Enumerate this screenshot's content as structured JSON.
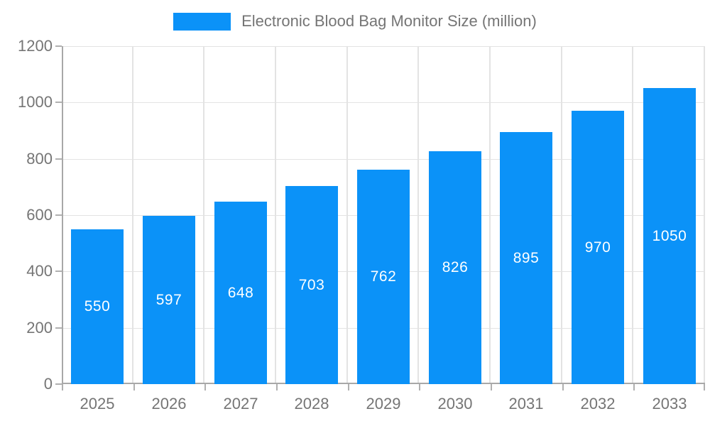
{
  "legend": {
    "label": "Electronic Blood Bag Monitor Size (million)"
  },
  "colors": {
    "bar": "#0b92f8",
    "bar_label": "#ffffff",
    "grid": "#e3e3e3",
    "axis": "#a8a8a8",
    "tick": "#b0b0b0",
    "text": "#757575",
    "background": "#ffffff"
  },
  "chart_data": {
    "type": "bar",
    "title": "Electronic Blood Bag Monitor Size (million)",
    "series_name": "Electronic Blood Bag Monitor Size (million)",
    "categories": [
      "2025",
      "2026",
      "2027",
      "2028",
      "2029",
      "2030",
      "2031",
      "2032",
      "2033"
    ],
    "values": [
      550,
      597,
      648,
      703,
      762,
      826,
      895,
      970,
      1050
    ],
    "xlabel": "",
    "ylabel": "",
    "ylim": [
      0,
      1200
    ],
    "yticks": [
      0,
      200,
      400,
      600,
      800,
      1000,
      1200
    ],
    "grid": true,
    "legend_position": "top-center",
    "bar_label_position": "inside-center"
  }
}
